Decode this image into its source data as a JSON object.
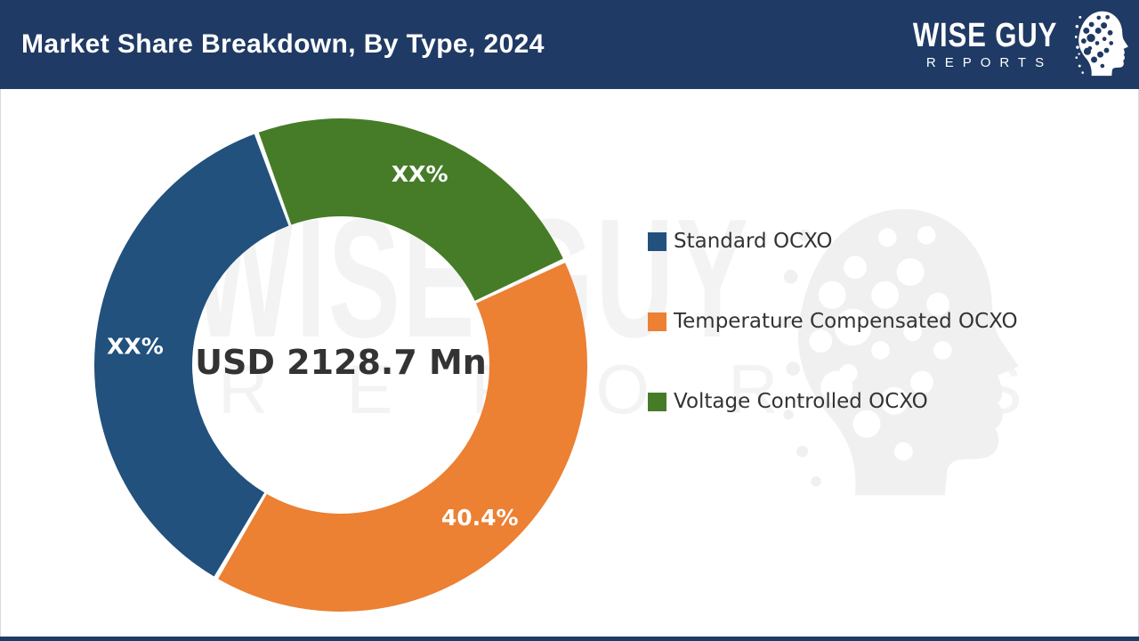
{
  "header": {
    "title": "Market Share Breakdown, By Type, 2024",
    "bg_color": "#1F3A64",
    "logo": {
      "line1": "WISE GUY",
      "line2": "REPORTS"
    }
  },
  "chart_data": {
    "type": "donut",
    "title": "Market Share Breakdown, By Type, 2024",
    "center_label": "USD 2128.7 Mn",
    "start_angle_deg": 340,
    "pad_angle_deg": 0.55,
    "legend_position": "right",
    "segments": [
      {
        "name": "Voltage Controlled OCXO",
        "value_pct": 23.6,
        "display_label": "XX%",
        "color": "#467C28"
      },
      {
        "name": "Temperature Compensated OCXO",
        "value_pct": 40.4,
        "display_label": "40.4%",
        "color": "#EC8033"
      },
      {
        "name": "Standard OCXO",
        "value_pct": 36.0,
        "display_label": "XX%",
        "color": "#21517C"
      }
    ]
  },
  "legend": {
    "items": [
      {
        "label": "Standard OCXO",
        "color": "#21517C"
      },
      {
        "label": "Temperature Compensated OCXO",
        "color": "#EC8033"
      },
      {
        "label": "Voltage Controlled OCXO",
        "color": "#467C28"
      }
    ]
  }
}
